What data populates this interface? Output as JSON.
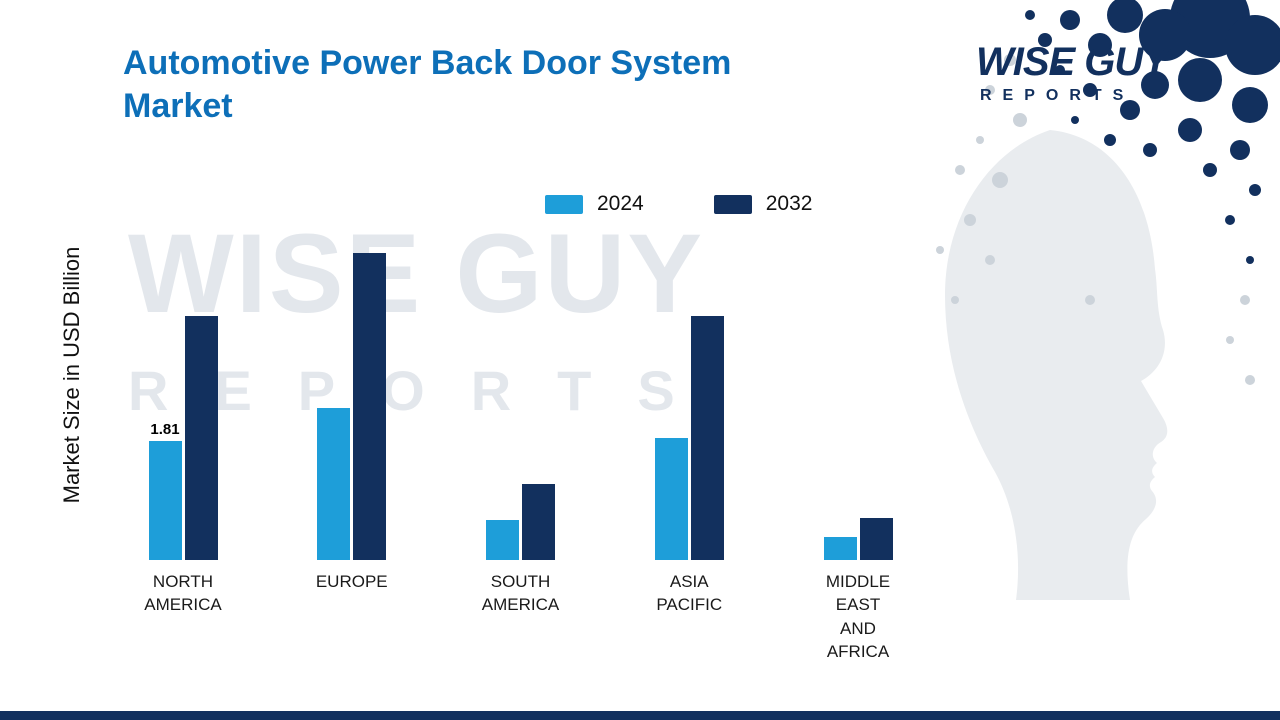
{
  "page": {
    "title": "Automotive Power Back Door System\nMarket"
  },
  "logo": {
    "name": "WISE GUY",
    "sub": "REPORTS"
  },
  "watermark": {
    "line1": "WISE GUY",
    "line2": "REPORTS"
  },
  "colors": {
    "title_blue": "#0d6fb8",
    "series_2024": "#1e9ed9",
    "series_2032": "#12305e",
    "footer": "#12305e"
  },
  "chart_data": {
    "type": "bar",
    "title": "",
    "xlabel": "",
    "ylabel": "Market Size in USD Billion",
    "ylim": [
      0,
      5
    ],
    "grid": false,
    "legend_position": "top",
    "categories": [
      "NORTH AMERICA",
      "EUROPE",
      "SOUTH AMERICA",
      "ASIA PACIFIC",
      "MIDDLE EAST AND AFRICA"
    ],
    "series": [
      {
        "name": "2024",
        "color": "#1e9ed9",
        "values": [
          1.81,
          2.3,
          0.6,
          1.85,
          0.35
        ],
        "labels": [
          "1.81",
          "",
          "",
          "",
          ""
        ]
      },
      {
        "name": "2032",
        "color": "#12305e",
        "values": [
          3.7,
          4.65,
          1.15,
          3.7,
          0.63
        ],
        "labels": [
          "",
          "",
          "",
          "",
          ""
        ]
      }
    ]
  }
}
